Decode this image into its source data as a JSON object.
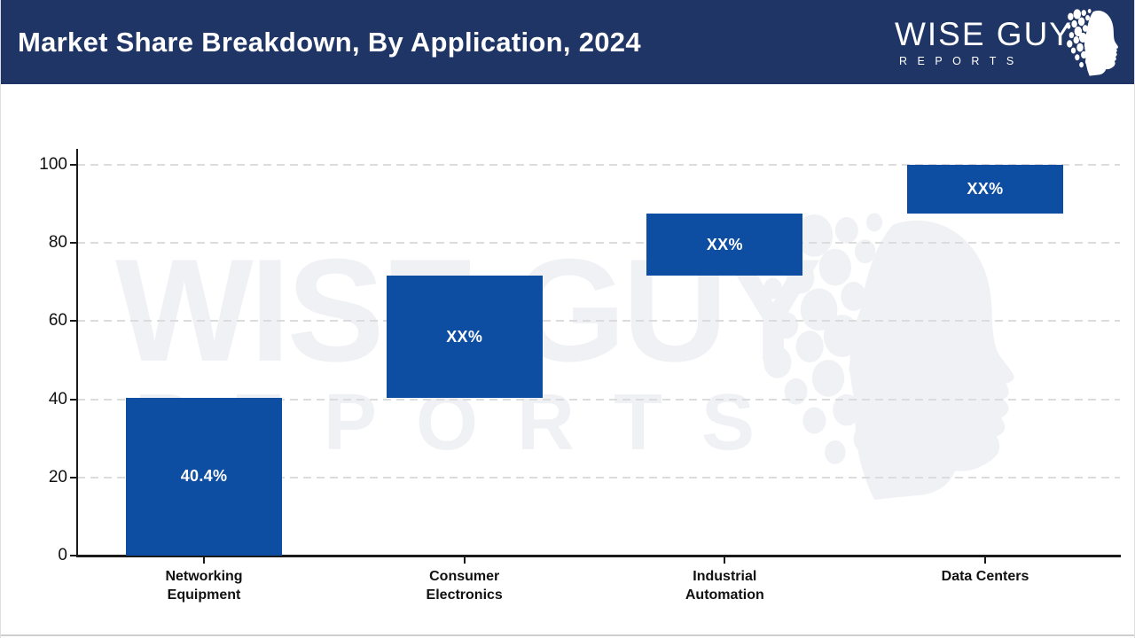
{
  "header": {
    "title": "Market Share Breakdown, By Application, 2024"
  },
  "logo": {
    "name": "WISE GUY",
    "subtitle": "REPORTS",
    "head_icon": "dotted-head-profile-icon"
  },
  "watermark": {
    "line1": "WISE GUY",
    "line2": "REPORTS",
    "head_icon": "dotted-head-profile-icon"
  },
  "chart_data": {
    "type": "bar",
    "subtype": "waterfall-segmented-market-share",
    "title": "Market Share Breakdown, By Application, 2024",
    "categories": [
      "Networking Equipment",
      "Consumer Electronics",
      "Industrial Automation",
      "Data Centers"
    ],
    "bars": [
      {
        "category": "Networking Equipment",
        "category_lines": [
          "Networking",
          "Equipment"
        ],
        "label": "40.4%",
        "start": 0,
        "end": 40.4,
        "value": 40.4
      },
      {
        "category": "Consumer Electronics",
        "category_lines": [
          "Consumer",
          "Electronics"
        ],
        "label": "XX%",
        "start": 40.4,
        "end": 71.6,
        "value": 31.2
      },
      {
        "category": "Industrial Automation",
        "category_lines": [
          "Industrial",
          "Automation"
        ],
        "label": "XX%",
        "start": 71.6,
        "end": 87.5,
        "value": 15.9
      },
      {
        "category": "Data Centers",
        "category_lines": [
          "Data Centers"
        ],
        "label": "XX%",
        "start": 87.5,
        "end": 100,
        "value": 12.5
      }
    ],
    "ylim": [
      0,
      100
    ],
    "yticks": [
      0,
      20,
      40,
      60,
      80,
      100
    ],
    "xlabel": "",
    "ylabel": "",
    "grid": "horizontal-dashed",
    "legend": "none",
    "bar_color": "#0d4da2",
    "bar_label_color": "#ffffff"
  },
  "colors": {
    "header_bg": "#1f3565",
    "bar_blue": "#0d4da2",
    "watermark_gray": "#f0f1f4",
    "axis_black": "#1a1a1a",
    "gridline_gray": "#dcdcdc"
  }
}
